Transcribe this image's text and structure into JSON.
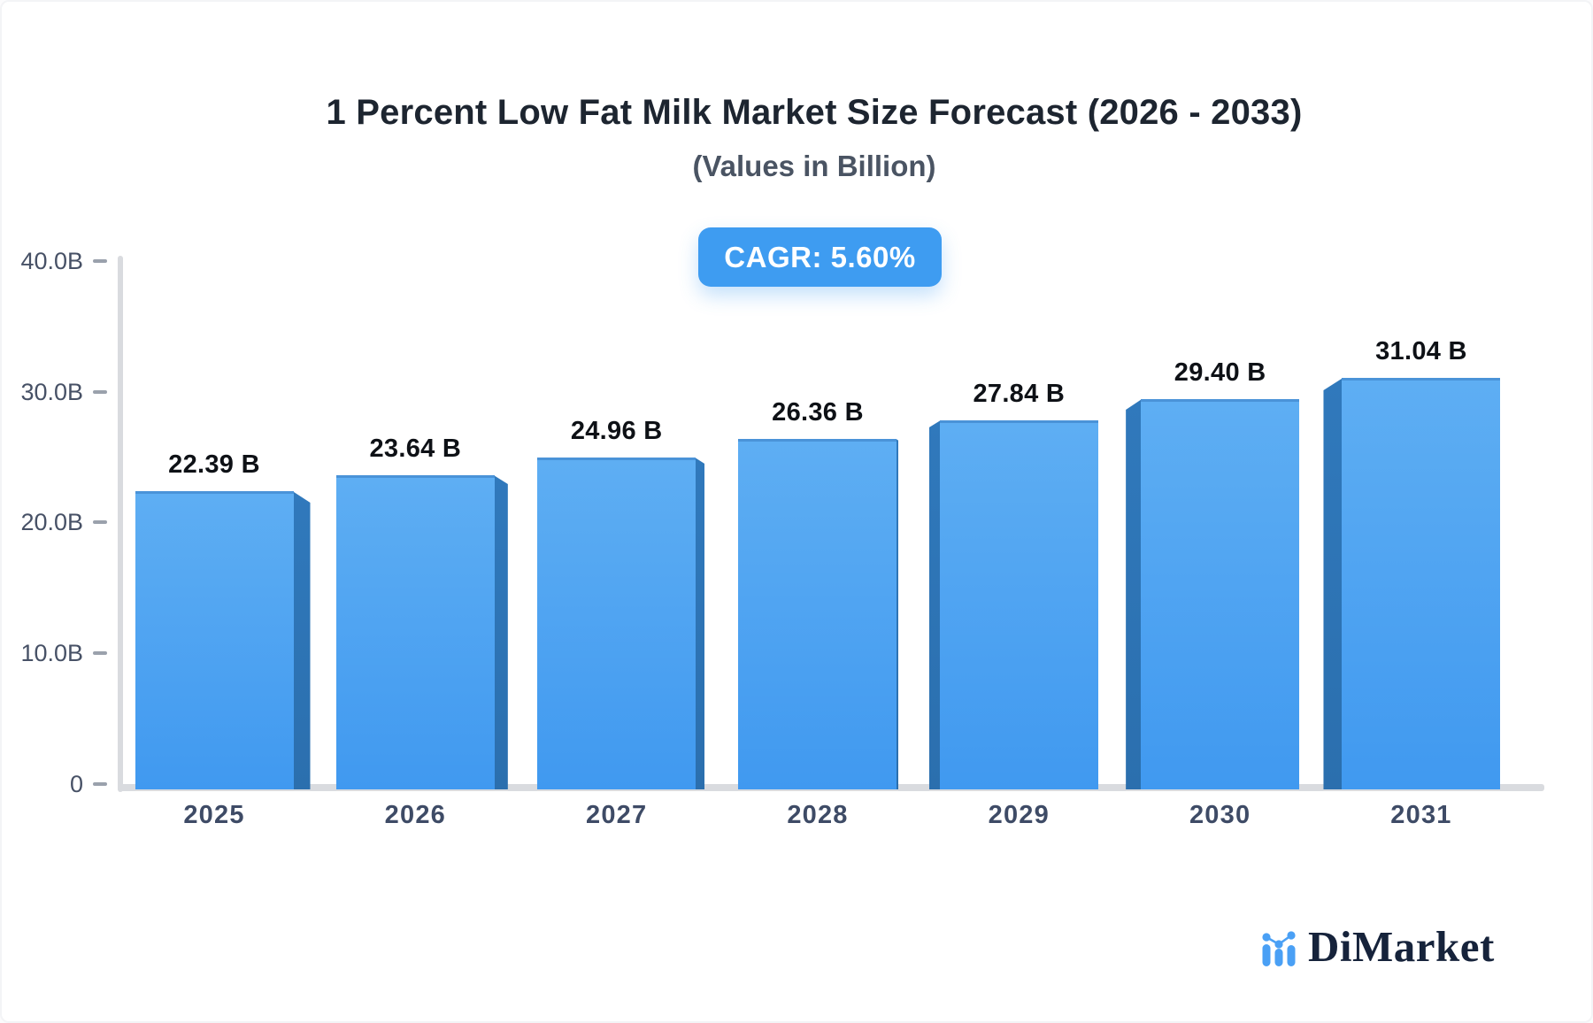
{
  "title": "1 Percent Low Fat Milk Market Size Forecast (2026 - 2033)",
  "subtitle": "(Values in Billion)",
  "cagr": {
    "label": "CAGR: 5.60%"
  },
  "brand": {
    "name": "DiMarket",
    "icon": "mini-bar-line-chart-icon"
  },
  "colors": {
    "accent": "#3e9cf1",
    "bar-face-top": "#5eaef3",
    "bar-face-bottom": "#4099f0",
    "bar-top-edge": "#4a93d8",
    "bar-side-top": "#3079bc",
    "bar-side-bottom": "#2b6fae",
    "axis-color": "#d9dbdf",
    "tick-color": "#9aa1ac",
    "y-label-color": "#475166",
    "x-label-color": "#3e4b66",
    "value-label-color": "#0e1116",
    "title-color": "#1d2530",
    "subtitle-color": "#4a5463",
    "logo-navy": "#16233b",
    "logo-blue": "#4aa0f5"
  },
  "chart_data": {
    "type": "bar",
    "style": "3d-perspective-columns",
    "title": "1 Percent Low Fat Milk Market Size Forecast (2026 - 2033)",
    "subtitle": "(Values in Billion)",
    "xlabel": "",
    "ylabel": "",
    "ylim": [
      0,
      40
    ],
    "grid": false,
    "legend": false,
    "categories": [
      "2025",
      "2026",
      "2027",
      "2028",
      "2029",
      "2030",
      "2031"
    ],
    "values": [
      22.39,
      23.64,
      24.96,
      26.36,
      27.84,
      29.4,
      31.04
    ],
    "value_labels": [
      "22.39 B",
      "23.64 B",
      "24.96 B",
      "26.36 B",
      "27.84 B",
      "29.40 B",
      "31.04 B"
    ],
    "y_ticks": [
      {
        "label": "40.0B",
        "value": 40
      },
      {
        "label": "30.0B",
        "value": 30
      },
      {
        "label": "20.0B",
        "value": 20
      },
      {
        "label": "10.0B",
        "value": 10
      },
      {
        "label": "0",
        "value": 0
      }
    ]
  }
}
